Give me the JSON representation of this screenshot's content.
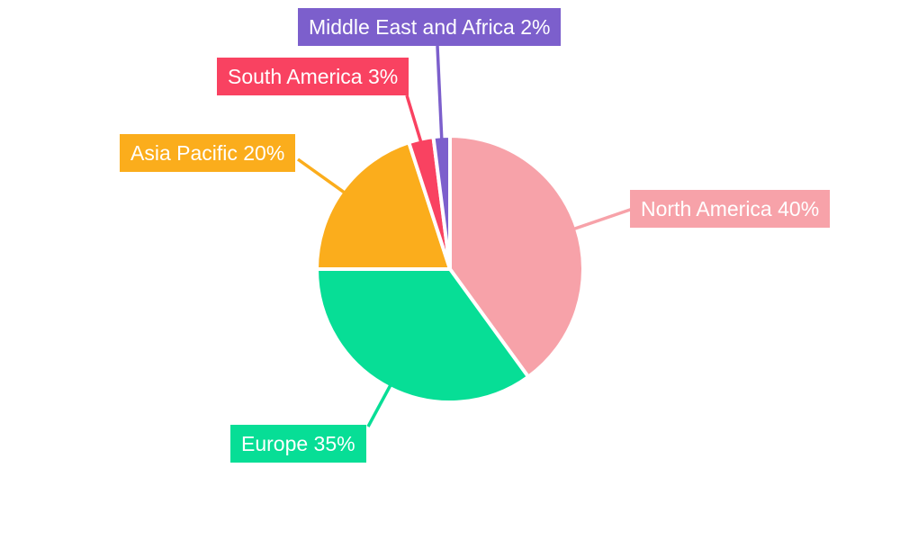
{
  "chart_data": {
    "type": "pie",
    "title": "",
    "series": [
      {
        "id": "north-america",
        "label": "North America",
        "value": 40,
        "color": "#F7A2A9",
        "callout_text": "North America 40%"
      },
      {
        "id": "europe",
        "label": "Europe",
        "value": 35,
        "color": "#07DE96",
        "callout_text": "Europe 35%"
      },
      {
        "id": "asia-pacific",
        "label": "Asia Pacific",
        "value": 20,
        "color": "#FBAD1C",
        "callout_text": "Asia Pacific 20%"
      },
      {
        "id": "south-america",
        "label": "South America",
        "value": 3,
        "color": "#F94261",
        "callout_text": "South America 3%"
      },
      {
        "id": "middle-east-africa",
        "label": "Middle East and Africa",
        "value": 2,
        "color": "#7C5FCC",
        "callout_text": "Middle East and Africa 2%"
      }
    ],
    "unit": "%",
    "start_angle_deg": 0,
    "direction": "clockwise",
    "legend_position": "callout-labels",
    "label_text_color": "#FFFFFF",
    "background_color": "#FFFFFF",
    "slice_gap_color": "#FFFFFF"
  }
}
